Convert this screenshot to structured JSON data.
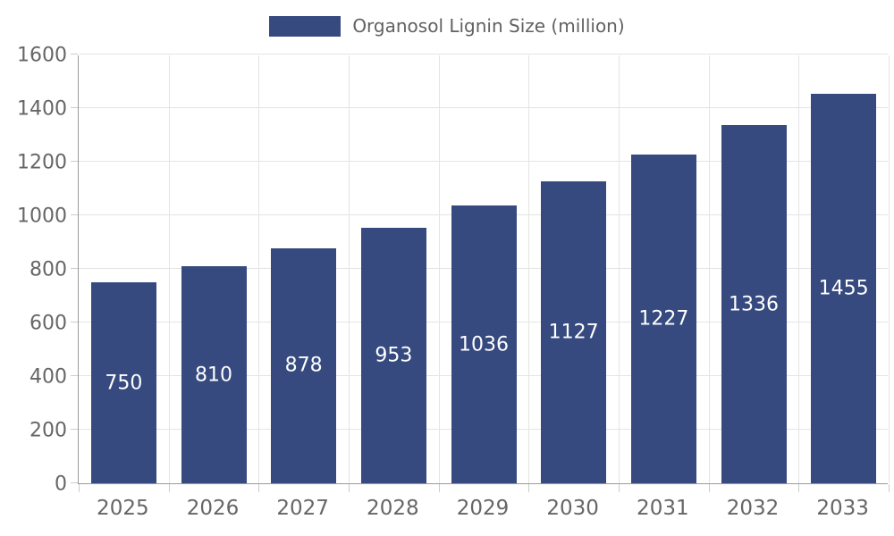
{
  "legend": {
    "label": "Organosol Lignin Size (million)"
  },
  "colors": {
    "bar": "#364a7f",
    "axis_text": "#666666",
    "grid": "#e4e4e4",
    "axis_line": "#9a9a9a",
    "value_label": "#ffffff"
  },
  "chart_data": {
    "type": "bar",
    "title": "Organosol Lignin Size (million)",
    "categories": [
      "2025",
      "2026",
      "2027",
      "2028",
      "2029",
      "2030",
      "2031",
      "2032",
      "2033"
    ],
    "values": [
      750,
      810,
      878,
      953,
      1036,
      1127,
      1227,
      1336,
      1455
    ],
    "xlabel": "",
    "ylabel": "",
    "ylim": [
      0,
      1600
    ],
    "y_ticks": [
      0,
      200,
      400,
      600,
      800,
      1000,
      1200,
      1400,
      1600
    ],
    "grid": true,
    "legend_position": "top",
    "value_labels": "inside-center"
  }
}
